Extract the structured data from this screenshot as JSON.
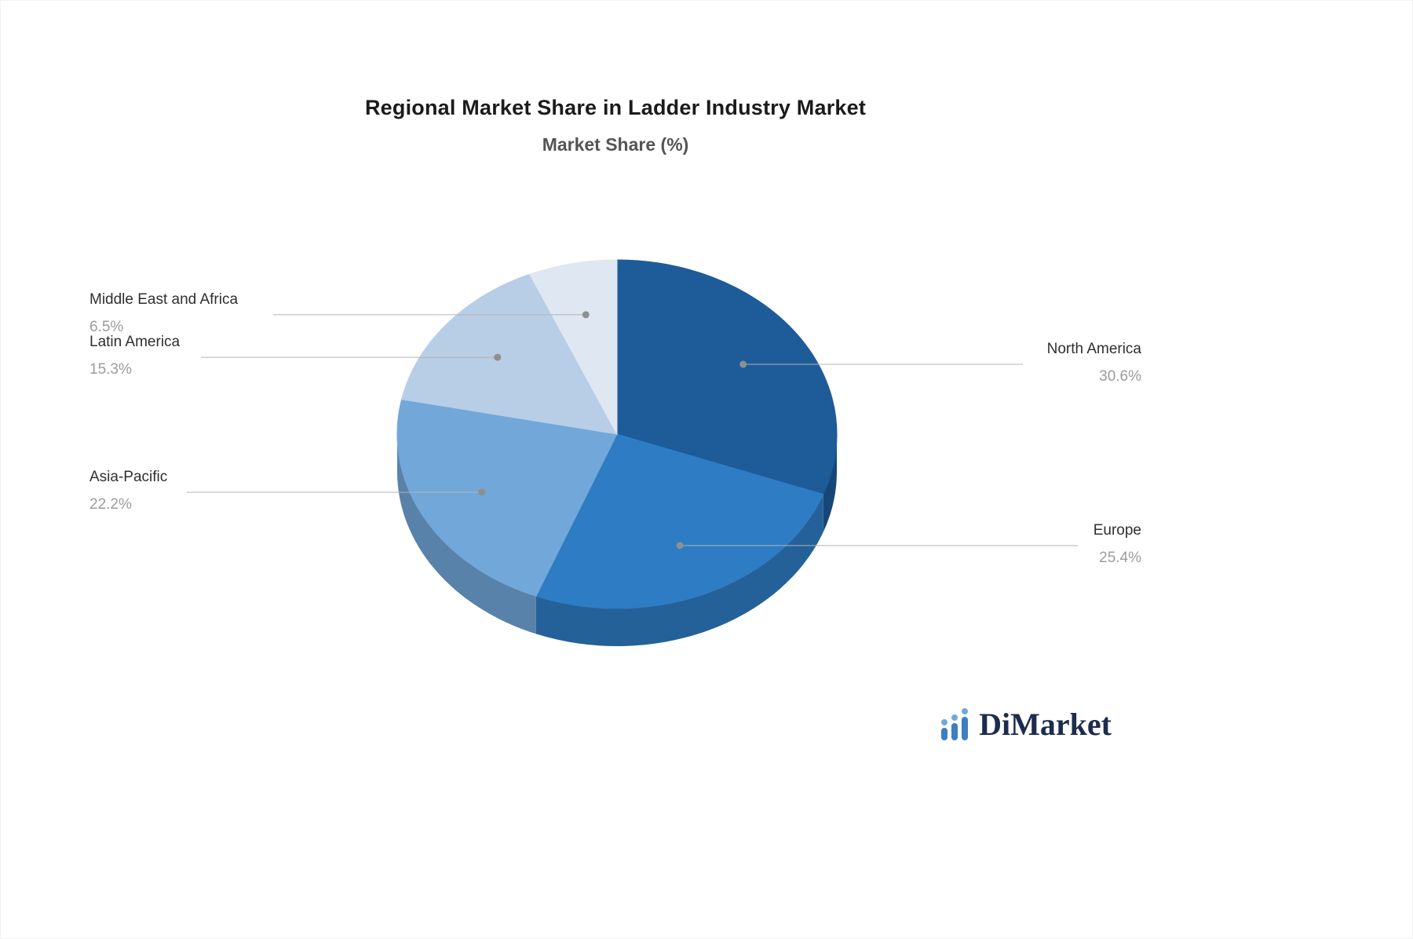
{
  "page": {
    "background_color": "#ffffff"
  },
  "chart_data": {
    "type": "pie",
    "style": "3d-pie",
    "title": "Regional Market Share in Ladder Industry Market",
    "subtitle": "Market Share (%)",
    "unit": "%",
    "start_angle_deg": -90,
    "direction": "clockwise",
    "legend_position": "none",
    "label_style": "outside-leader-lines",
    "slices": [
      {
        "label": "North America",
        "value": 30.6,
        "display": "30.6%",
        "color": "#1e5b99",
        "label_side": "right"
      },
      {
        "label": "Europe",
        "value": 25.4,
        "display": "25.4%",
        "color": "#2e7cc4",
        "label_side": "right"
      },
      {
        "label": "Asia-Pacific",
        "value": 22.2,
        "display": "22.2%",
        "color": "#72a7da",
        "label_side": "left"
      },
      {
        "label": "Latin America",
        "value": 15.3,
        "display": "15.3%",
        "color": "#b8cee6",
        "label_side": "left"
      },
      {
        "label": "Middle East and Africa",
        "value": 6.5,
        "display": "6.5%",
        "color": "#dee7f2",
        "label_side": "left"
      }
    ],
    "leader_line_color": "#b3b3b3",
    "leader_dot_color": "#8f8f8f"
  },
  "branding": {
    "logo_text": "DiMarket",
    "logo_icon": "bar-chart-icon",
    "text_color": "#1c2c4e",
    "icon_color": "#3d7fc1",
    "icon_dot_color": "#6faadd"
  }
}
